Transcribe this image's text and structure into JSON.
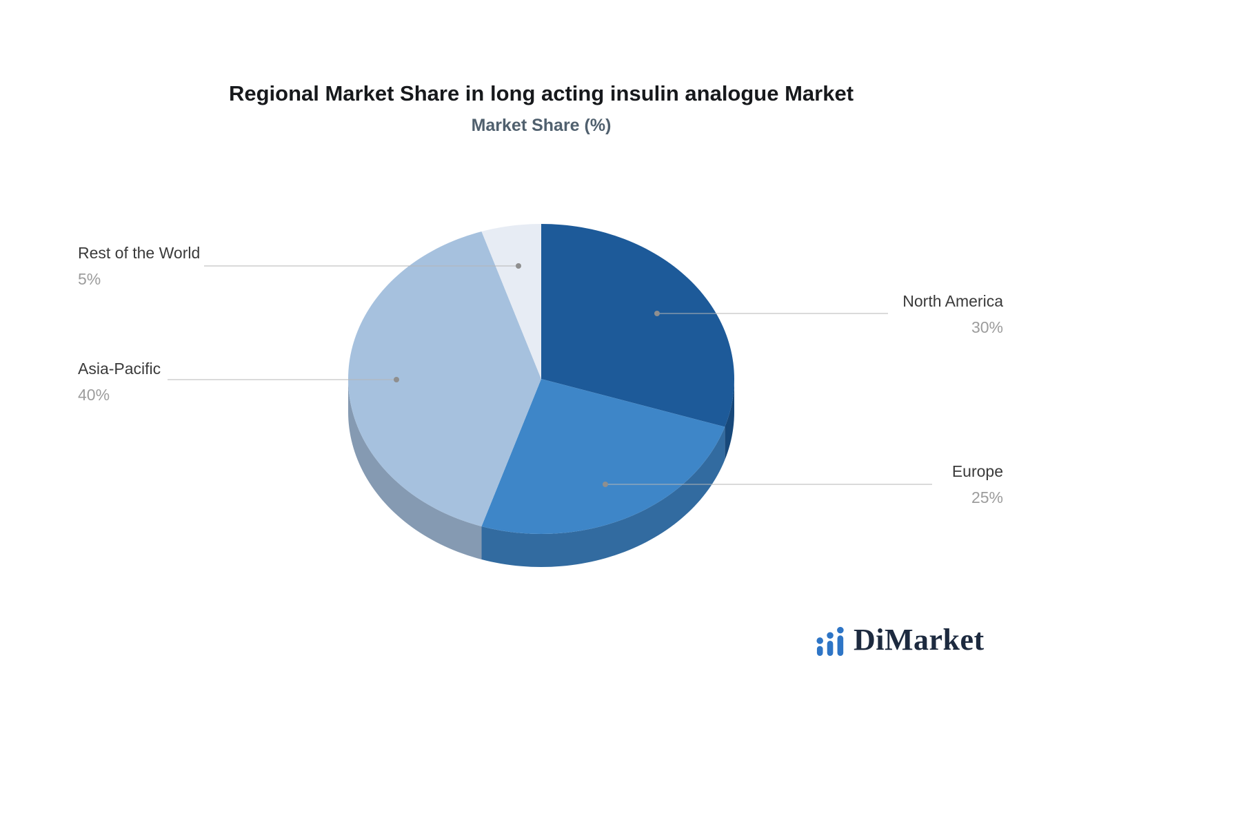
{
  "header": {
    "title": "Regional Market Share in long acting insulin analogue Market",
    "subtitle": "Market Share (%)"
  },
  "chart_data": {
    "type": "pie",
    "title": "Regional Market Share in long acting insulin analogue Market",
    "subtitle": "Market Share (%)",
    "unit": "%",
    "effect": "3d",
    "start_angle": "top",
    "direction": "clockwise",
    "legend_position": "callout-labels",
    "slices": [
      {
        "label": "North America",
        "value": 30,
        "display": "30%",
        "color": "#1d5a99"
      },
      {
        "label": "Europe",
        "value": 25,
        "display": "25%",
        "color": "#3e86c8"
      },
      {
        "label": "Asia-Pacific",
        "value": 40,
        "display": "40%",
        "color": "#a6c1de"
      },
      {
        "label": "Rest of the World",
        "value": 5,
        "display": "5%",
        "color": "#e7ecf4"
      }
    ]
  },
  "style": {
    "leader_line_color": "#b5b5b5",
    "leader_dot_color": "#8f8f8f",
    "label_color": "#3a3a3a",
    "value_color": "#9c9c9c"
  },
  "brand": {
    "name": "DiMarket",
    "icon": "bar-chart-dots-icon",
    "icon_color": "#2e75c6",
    "text_color": "#1d2a3f"
  }
}
